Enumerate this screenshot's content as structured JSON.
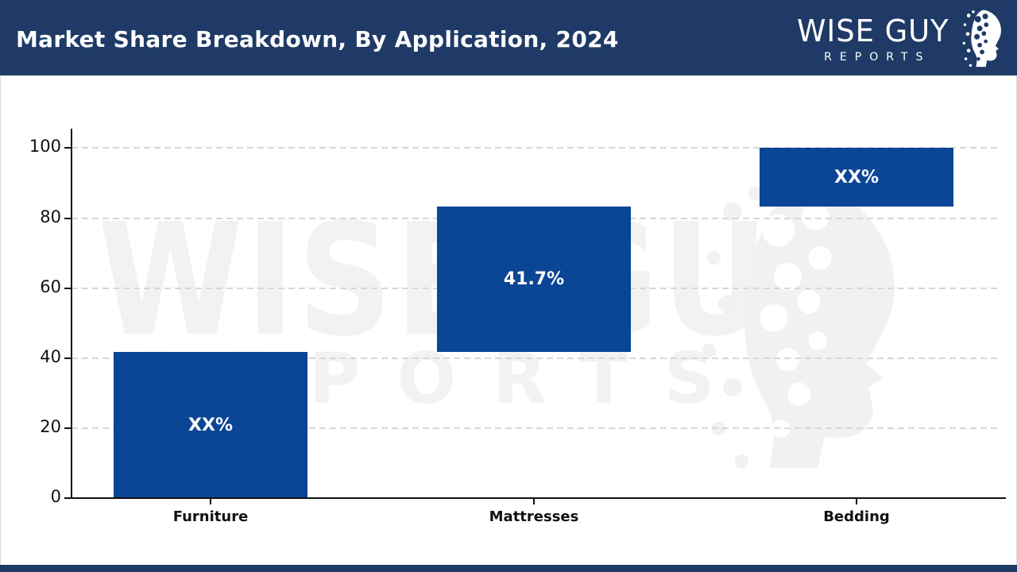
{
  "header": {
    "title": "Market Share Breakdown, By Application, 2024",
    "brand": {
      "wordmark": "WISE GUY",
      "wordmark_sub": "REPORTS"
    }
  },
  "watermark": {
    "line1": "WISE GUY",
    "line2": "REPORTS"
  },
  "chart_data": {
    "type": "bar",
    "subtype": "waterfall",
    "title": "Market Share Breakdown, By Application, 2024",
    "categories": [
      "Furniture",
      "Mattresses",
      "Bedding"
    ],
    "bars": [
      {
        "category": "Furniture",
        "start": 0,
        "end": 41.7,
        "label": "XX%"
      },
      {
        "category": "Mattresses",
        "start": 41.7,
        "end": 83.3,
        "label": "41.7%"
      },
      {
        "category": "Bedding",
        "start": 83.3,
        "end": 100,
        "label": "XX%"
      }
    ],
    "yticks": [
      0,
      20,
      40,
      60,
      80,
      100
    ],
    "ylim": [
      0,
      106
    ],
    "grid": "horizontal-dashed",
    "legend": "none",
    "xlabel": "",
    "ylabel": ""
  },
  "colors": {
    "header_navy": "#1f3a66",
    "bar_blue": "#0b4596",
    "grid_gray": "#d7d7d7",
    "watermark_gray": "#f2f2f2",
    "axis_black": "#111111",
    "card_border": "#dcdcdc",
    "title_white": "#ffffff"
  }
}
